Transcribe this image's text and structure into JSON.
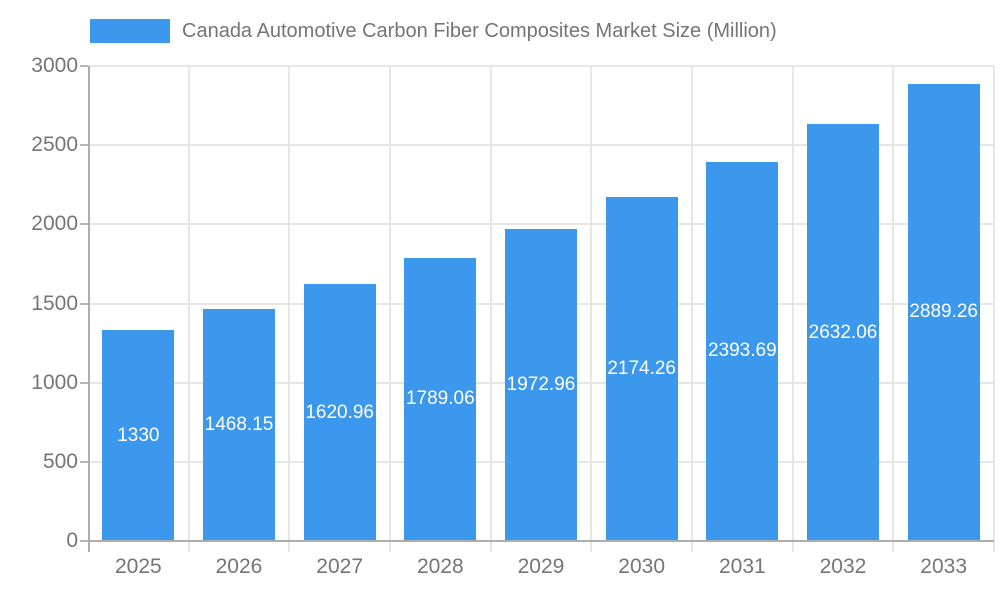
{
  "chart_data": {
    "type": "bar",
    "title": "Canada Automotive Carbon Fiber Composites Market Size (Million)",
    "categories": [
      "2025",
      "2026",
      "2027",
      "2028",
      "2029",
      "2030",
      "2031",
      "2032",
      "2033"
    ],
    "values": [
      1330,
      1468.15,
      1620.96,
      1789.06,
      1972.96,
      2174.26,
      2393.69,
      2632.06,
      2889.26
    ],
    "value_labels": [
      "1330",
      "1468.15",
      "1620.96",
      "1789.06",
      "1972.96",
      "2174.26",
      "2393.69",
      "2632.06",
      "2889.26"
    ],
    "xlabel": "",
    "ylabel": "",
    "ylim": [
      0,
      3000
    ],
    "yticks": [
      "0",
      "500",
      "1000",
      "1500",
      "2000",
      "2500",
      "3000"
    ],
    "grid": "horizontal-and-vertical",
    "legend_position": "top-left",
    "colors": {
      "bar": "#3b98ec",
      "value_label": "#ffffff",
      "axis_line": "#adadad",
      "gridline": "#e6e6e6",
      "tick_label": "#757575",
      "title_text": "#757575",
      "background": "#ffffff"
    }
  }
}
